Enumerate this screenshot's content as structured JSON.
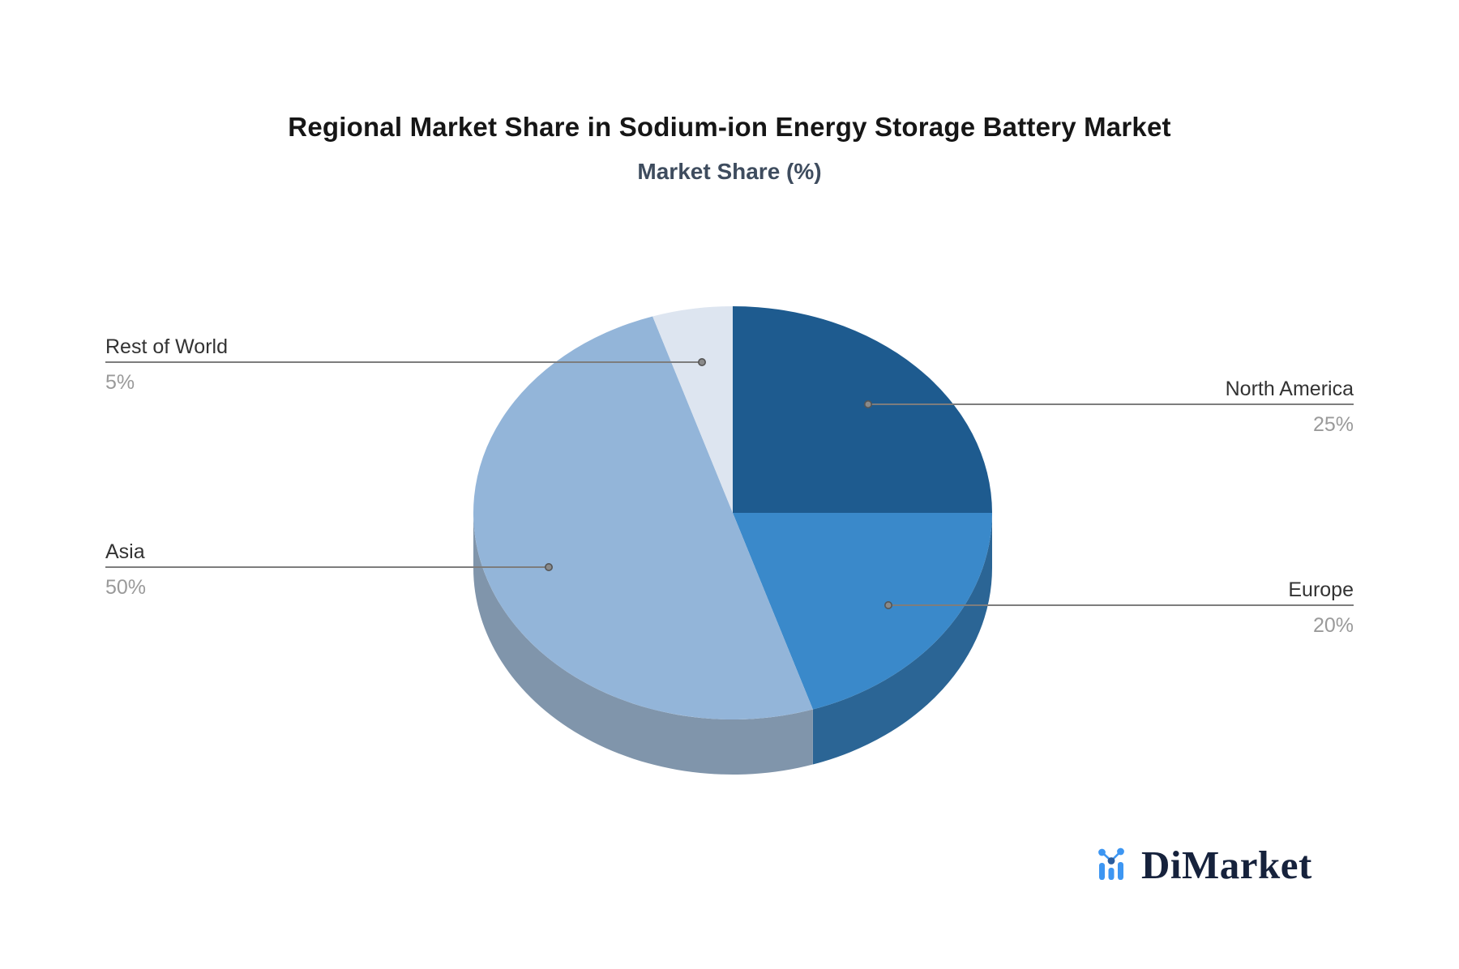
{
  "chart_data": {
    "type": "pie",
    "style": "3d",
    "title": "Regional Market Share in Sodium-ion Energy Storage Battery Market",
    "subtitle": "Market Share (%)",
    "unit": "%",
    "start_angle_deg": 90,
    "direction": "clockwise",
    "categories": [
      "North America",
      "Europe",
      "Asia",
      "Rest of World"
    ],
    "values": [
      25,
      20,
      50,
      5
    ],
    "colors": [
      "#1e5b8f",
      "#3a89ca",
      "#93b5d9",
      "#dde5f0"
    ],
    "depth_colors": {
      "Europe": "#2b6595",
      "Asia": "#8095ab"
    },
    "labels": [
      {
        "name": "North America",
        "value_label": "25%"
      },
      {
        "name": "Europe",
        "value_label": "20%"
      },
      {
        "name": "Asia",
        "value_label": "50%"
      },
      {
        "name": "Rest of World",
        "value_label": "5%"
      }
    ],
    "legend": "none",
    "leader_line_color": "#7d7d7d"
  },
  "branding": {
    "logo_text": "DiMarket",
    "logo_color": "#3d96f2"
  }
}
